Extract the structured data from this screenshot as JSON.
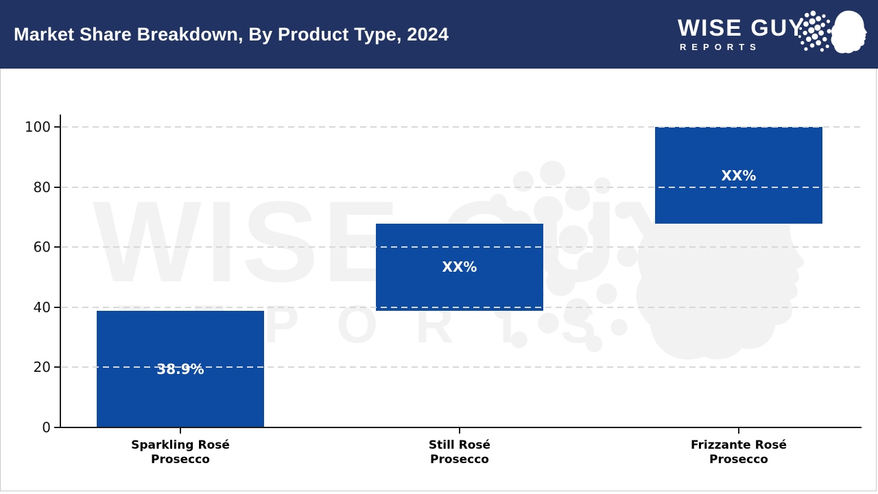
{
  "header": {
    "title": "Market Share Breakdown, By Product Type, 2024",
    "logo": {
      "line1": "WISE GUY",
      "line2": "REPORTS"
    }
  },
  "watermark": {
    "line1": "WISE GUY",
    "line2": "REPORTS"
  },
  "chart_data": {
    "type": "bar",
    "subtype": "floating-segment-waterfall",
    "title": "Market Share Breakdown, By Product Type, 2024",
    "categories": [
      [
        "Sparkling Rosé",
        "Prosecco"
      ],
      [
        "Still Rosé",
        "Prosecco"
      ],
      [
        "Frizzante Rosé",
        "Prosecco"
      ]
    ],
    "segments": [
      {
        "category": "Sparkling Rosé Prosecco",
        "start": 0,
        "end": 38.9,
        "label": "38.9%"
      },
      {
        "category": "Still Rosé Prosecco",
        "start": 38.9,
        "end": 67.8,
        "label": "XX%"
      },
      {
        "category": "Frizzante Rosé Prosecco",
        "start": 67.8,
        "end": 100,
        "label": "XX%"
      }
    ],
    "ylabel": "",
    "xlabel": "",
    "ylim": [
      0,
      100
    ],
    "yticks": [
      0,
      20,
      40,
      60,
      80,
      100
    ],
    "grid": "dashed-horizontal",
    "legend": "none",
    "bar_color": "#0d4aa1",
    "bar_label_color": "#ffffff"
  },
  "colors": {
    "header_bg": "#203362",
    "bar": "#0d4aa1",
    "grid": "#d8d8d8",
    "axis": "#1a1a1a",
    "watermark": "#f2f2f2"
  }
}
